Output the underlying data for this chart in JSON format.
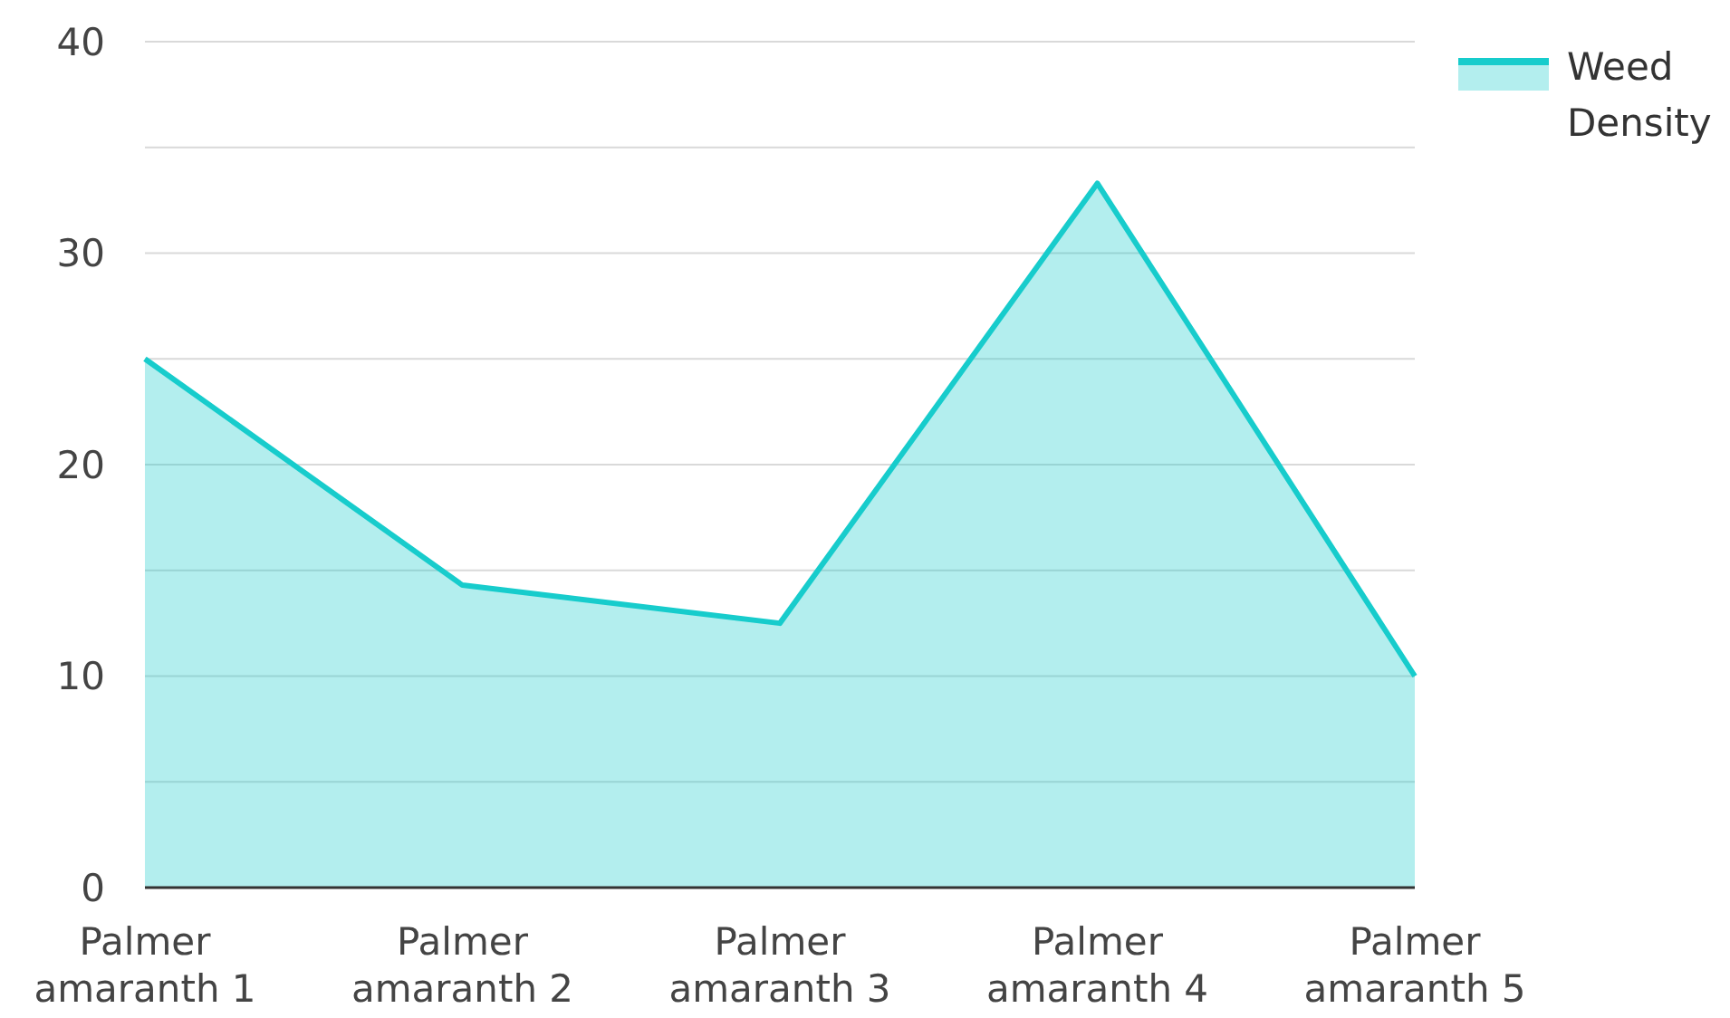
{
  "chart_data": {
    "type": "area",
    "categories": [
      "Palmer amaranth 1",
      "Palmer amaranth 2",
      "Palmer amaranth 3",
      "Palmer amaranth 4",
      "Palmer amaranth 5"
    ],
    "series": [
      {
        "name": "Weed Density",
        "color": "#17cccc",
        "values": [
          25,
          14.3,
          12.5,
          33.3,
          10
        ]
      }
    ],
    "ylim": [
      0,
      40
    ],
    "yticks": [
      0,
      {
        "value": 5,
        "label": null
      },
      10,
      {
        "value": 15,
        "label": null
      },
      20,
      {
        "value": 25,
        "label": null
      },
      30,
      {
        "value": 35,
        "label": null
      },
      40
    ],
    "grid": "y",
    "legend": "top right"
  }
}
